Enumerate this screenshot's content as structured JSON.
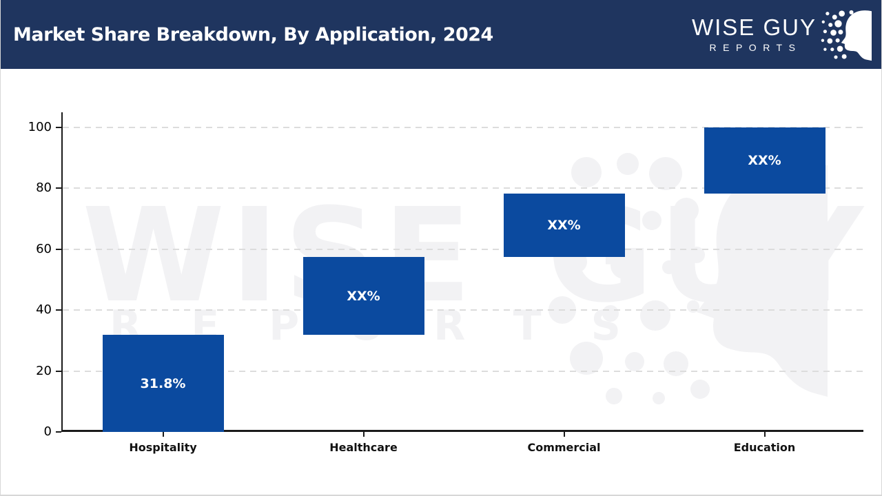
{
  "header": {
    "title": "Market Share Breakdown, By Application, 2024",
    "brand": {
      "name": "WISE GUY",
      "subname": "REPORTS"
    }
  },
  "watermark": {
    "line1": "WISE GUY",
    "line2": "REPORTS"
  },
  "chart_data": {
    "type": "bar",
    "variant": "waterfall",
    "title": "Market Share Breakdown, By Application, 2024",
    "categories": [
      "Hospitality",
      "Healthcare",
      "Commercial",
      "Education"
    ],
    "segments": [
      {
        "category": "Hospitality",
        "start": 0,
        "end": 31.8,
        "label": "31.8%"
      },
      {
        "category": "Healthcare",
        "start": 31.8,
        "end": 57.5,
        "label": "XX%"
      },
      {
        "category": "Commercial",
        "start": 57.5,
        "end": 78.2,
        "label": "XX%"
      },
      {
        "category": "Education",
        "start": 78.2,
        "end": 100,
        "label": "XX%"
      }
    ],
    "y_ticks": [
      0,
      20,
      40,
      60,
      80,
      100
    ],
    "ylim": [
      0,
      105
    ],
    "xlabel": "",
    "ylabel": "",
    "grid": "horizontal-dashed",
    "legend": "none",
    "bar_color": "#0b4a9f",
    "bar_label_color": "#ffffff",
    "axis_color": "#1a1a1a",
    "gridline_color": "#dcdcdc",
    "header_color": "#1f355f",
    "watermark_color": "#f2f2f4"
  }
}
